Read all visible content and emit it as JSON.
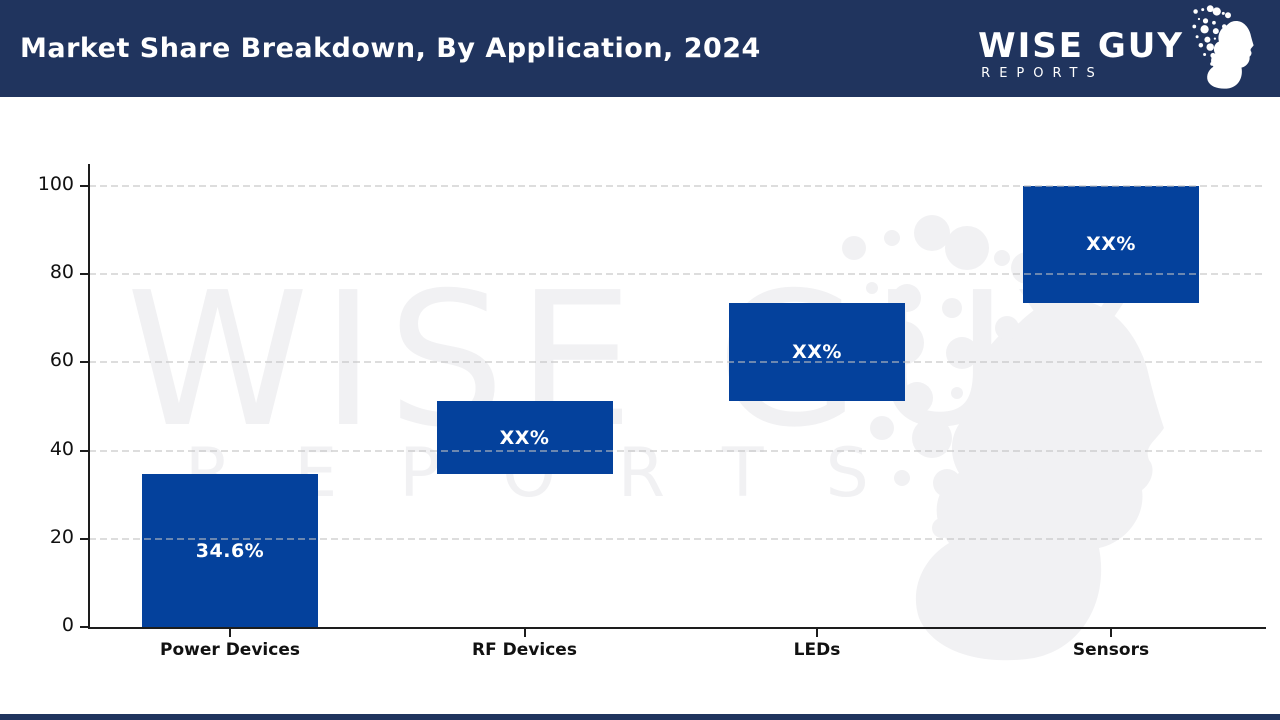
{
  "header": {
    "title": "Market Share Breakdown, By Application, 2024",
    "logo": {
      "wordmark": "WISE GUY",
      "subtitle": "REPORTS"
    }
  },
  "watermark": {
    "wordmark": "WISE GUY",
    "subtitle": "REPORTS"
  },
  "footer": {},
  "colors": {
    "header_bg": "#20345e",
    "bar_blue": "#04419c",
    "watermark_gray": "#f1f1f3",
    "axis_dark": "#1d1d1d"
  },
  "chart_data": {
    "type": "bar",
    "subtype": "floating-waterfall",
    "title": "Market Share Breakdown, By Application, 2024",
    "categories": [
      "Power Devices",
      "RF Devices",
      "LEDs",
      "Sensors"
    ],
    "bars": [
      {
        "category": "Power Devices",
        "start": 0,
        "end": 34.6,
        "label": "34.6%"
      },
      {
        "category": "RF Devices",
        "start": 34.6,
        "end": 51.2,
        "label": "XX%"
      },
      {
        "category": "LEDs",
        "start": 51.2,
        "end": 73.5,
        "label": "XX%"
      },
      {
        "category": "Sensors",
        "start": 73.5,
        "end": 100,
        "label": "XX%"
      }
    ],
    "yticks": [
      0,
      20,
      40,
      60,
      80,
      100
    ],
    "ylim": [
      0,
      105
    ],
    "xlabel": "",
    "ylabel": "",
    "grid": "dashed-horizontal",
    "legend": "none",
    "bar_color": "#04419c",
    "bar_label_color": "#ffffff"
  }
}
